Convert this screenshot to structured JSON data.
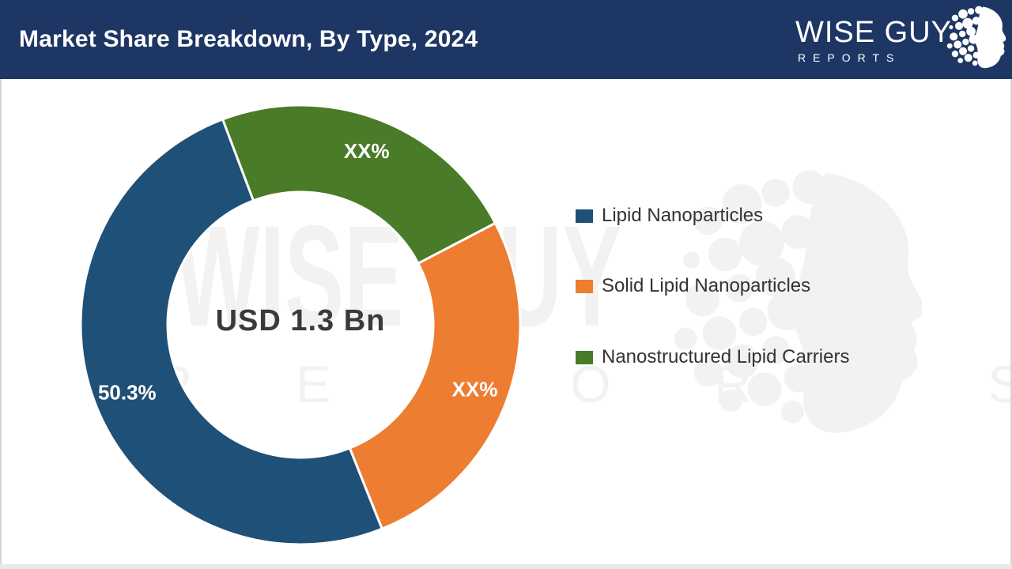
{
  "header": {
    "title": "Market Share Breakdown, By Type, 2024",
    "logo": {
      "name": "WISE GUY",
      "tagline": "REPORTS"
    }
  },
  "watermark": {
    "big_text": "WISE GUY",
    "sub_text": "R E P O R T S"
  },
  "chart_data": {
    "type": "donut",
    "title": "Market Share Breakdown, By Type, 2024",
    "center_label": "USD 1.3 Bn",
    "start_angle_deg": 158.2,
    "inner_radius_ratio": 0.6,
    "label_radius_ratio": 0.84,
    "segments": [
      {
        "name": "Lipid Nanoparticles",
        "label": "50.3%",
        "value_pct": 50.3,
        "color": "#1F5077",
        "label_color": "#FFFFFF"
      },
      {
        "name": "Nanostructured Lipid Carriers",
        "label": "XX%",
        "value_pct": 23.1,
        "color": "#4A7B28",
        "label_color": "#FFFFFF"
      },
      {
        "name": "Solid Lipid Nanoparticles",
        "label": "XX%",
        "value_pct": 26.6,
        "color": "#ED7D31",
        "label_color": "#FFFFFF"
      }
    ],
    "legend": [
      {
        "label": "Lipid Nanoparticles",
        "color": "#1F5077"
      },
      {
        "label": "Solid Lipid Nanoparticles",
        "color": "#ED7D31"
      },
      {
        "label": "Nanostructured Lipid Carriers",
        "color": "#4A7B28"
      }
    ],
    "legend_position": "right"
  },
  "colors": {
    "header_bg": "#1E3664",
    "page_bg": "#FFFFFF",
    "center_text": "#3A3A3A",
    "legend_text": "#333333",
    "watermark": "#F2F2F2",
    "bottom_strip": "#E9E9E9",
    "side_border": "#D5D5D5",
    "segment_separator": "#FFFFFF"
  }
}
